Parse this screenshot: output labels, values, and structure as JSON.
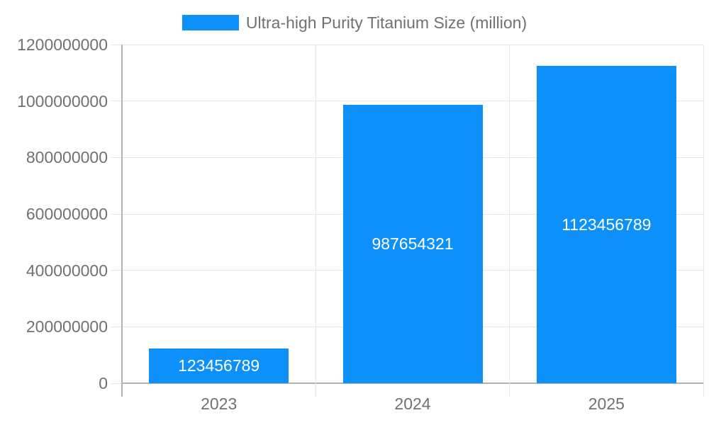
{
  "legend": {
    "label": "Ultra-high Purity Titanium Size (million)"
  },
  "chart_data": {
    "type": "bar",
    "title": "Ultra-high Purity Titanium Size (million)",
    "categories": [
      "2023",
      "2024",
      "2025"
    ],
    "series": [
      {
        "name": "Ultra-high Purity Titanium Size (million)",
        "values": [
          123456789,
          987654321,
          1123456789
        ]
      }
    ],
    "bar_labels": [
      "123456789",
      "987654321",
      "1123456789"
    ],
    "yticks": [
      0,
      200000000,
      400000000,
      600000000,
      800000000,
      1000000000,
      1200000000
    ],
    "ytick_labels": [
      "0",
      "200000000",
      "400000000",
      "600000000",
      "800000000",
      "1000000000",
      "1200000000"
    ],
    "ylim": [
      0,
      1200000000
    ],
    "xlabel": "",
    "ylabel": "",
    "grid": true,
    "legend_position": "top",
    "colors": {
      "bar": "#0d90f9",
      "bar_label": "#ffffff",
      "grid": "#e6e6e6",
      "axis": "#b2b2b2",
      "text": "#717171"
    }
  }
}
